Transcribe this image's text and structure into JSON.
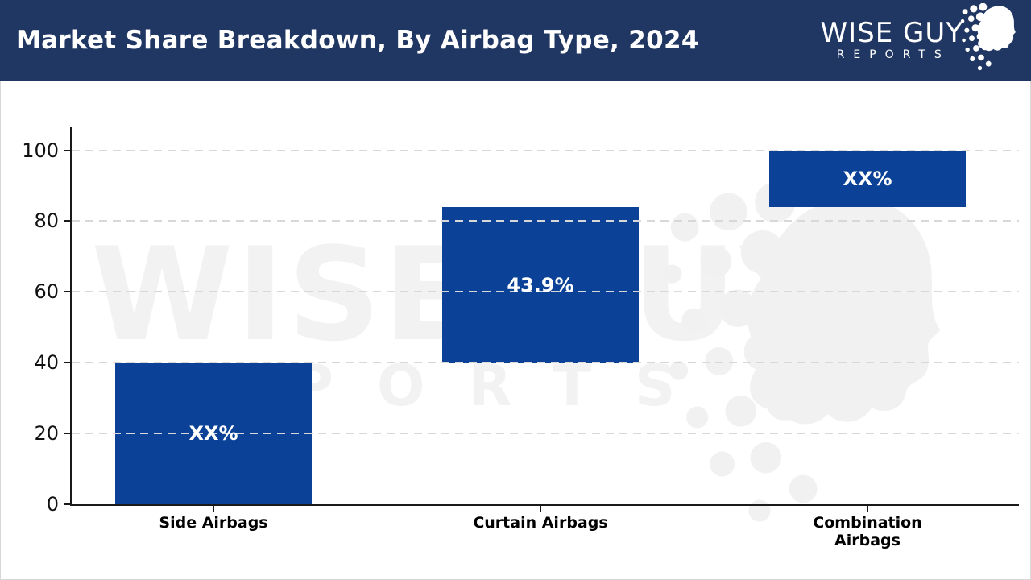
{
  "header": {
    "title": "Market Share Breakdown, By Airbag Type, 2024",
    "brand_name": "WISE GUY",
    "brand_sub": "REPORTS",
    "bg_color": "#203663"
  },
  "watermark": {
    "line1": "WISE GUY",
    "line2": "REPORTS"
  },
  "chart_data": {
    "type": "bar",
    "variant": "waterfall",
    "title": "Market Share Breakdown, By Airbag Type, 2024",
    "categories": [
      "Side Airbags",
      "Curtain Airbags",
      "Combination Airbags"
    ],
    "segments": [
      {
        "category": "Side Airbags",
        "start": 0,
        "end": 40,
        "label": "XX%"
      },
      {
        "category": "Curtain Airbags",
        "start": 40,
        "end": 83.9,
        "label": "43.9%"
      },
      {
        "category": "Combination Airbags",
        "start": 83.9,
        "end": 100,
        "label": "XX%"
      }
    ],
    "xlabel": "",
    "ylabel": "",
    "yticks": [
      0,
      20,
      40,
      60,
      80,
      100
    ],
    "ylim": [
      0,
      107
    ],
    "grid": "horizontal-dashed",
    "legend": "none",
    "bar_color": "#0b4298",
    "gridline_color": "#d8d8d8",
    "axis_color": "#1a1a1a"
  }
}
